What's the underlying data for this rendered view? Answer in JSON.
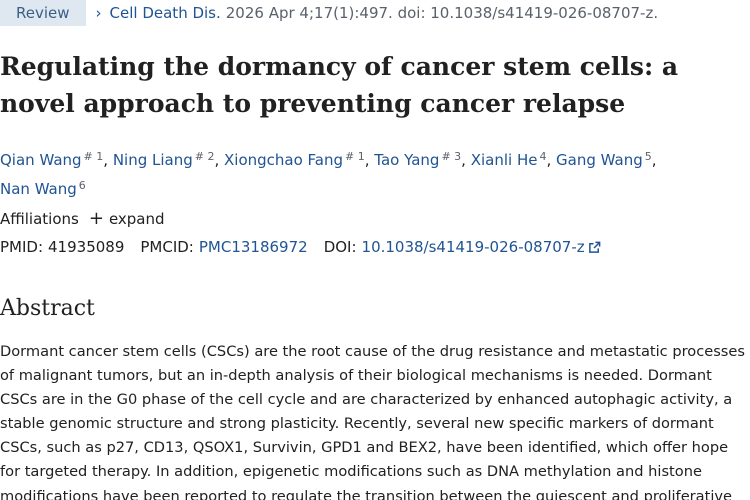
{
  "article": {
    "type_badge": "Review",
    "journal": "Cell Death Dis.",
    "citation": "2026 Apr 4;17(1):497. doi: 10.1038/s41419-026-08707-z.",
    "title": "Regulating the dormancy of cancer stem cells: a novel approach to preventing cancer relapse"
  },
  "authors": [
    {
      "name": "Qian Wang",
      "sup": "# 1"
    },
    {
      "name": "Ning Liang",
      "sup": "# 2"
    },
    {
      "name": "Xiongchao Fang",
      "sup": "# 1"
    },
    {
      "name": "Tao Yang",
      "sup": "# 3"
    },
    {
      "name": "Xianli He",
      "sup": "4"
    },
    {
      "name": "Gang Wang",
      "sup": "5"
    },
    {
      "name": "Nan Wang",
      "sup": "6"
    }
  ],
  "affiliations": {
    "label": "Affiliations",
    "expand_label": "expand"
  },
  "identifiers": {
    "pmid_label": "PMID:",
    "pmid": "41935089",
    "pmcid_label": "PMCID:",
    "pmcid": "PMC13186972",
    "doi_label": "DOI:",
    "doi": "10.1038/s41419-026-08707-z"
  },
  "abstract": {
    "heading": "Abstract",
    "text": "Dormant cancer stem cells (CSCs) are the root cause of the drug resistance and metastatic processes of malignant tumors, but an in-depth analysis of their biological mechanisms is needed. Dormant CSCs are in the G0 phase of the cell cycle and are characterized by enhanced autophagic activity, a stable genomic structure and strong plasticity. Recently, several new specific markers of dormant CSCs, such as p27, CD13, QSOX1, Survivin, GPD1 and BEX2, have been identified, which offer hope for targeted therapy. In addition, epigenetic modifications such as DNA methylation and histone modifications have been reported to regulate the transition between the quiescent and proliferative"
  },
  "colors": {
    "link": "#205493",
    "badge_bg": "#dfe8f1",
    "text": "#212121",
    "muted": "#5b616b"
  }
}
